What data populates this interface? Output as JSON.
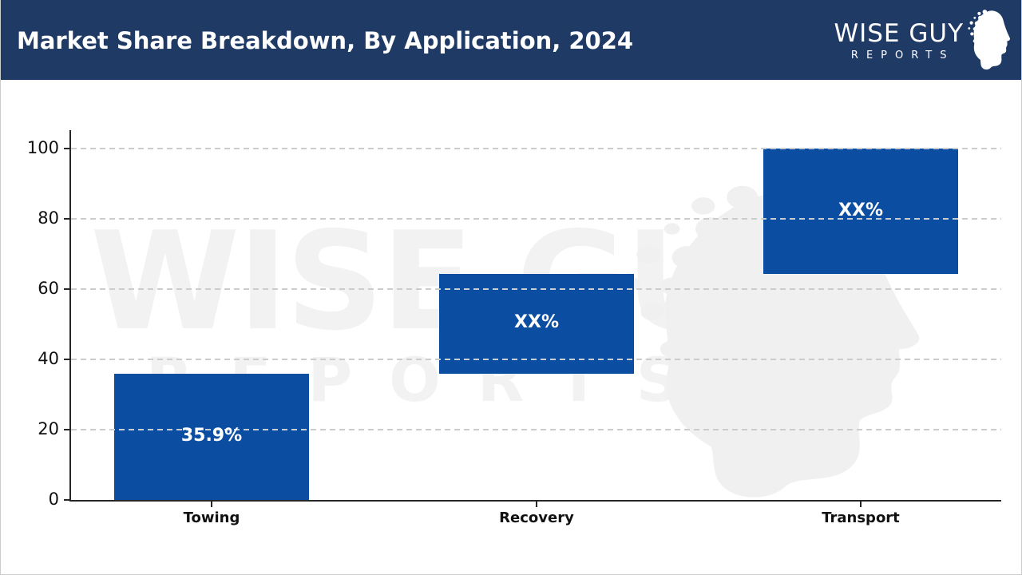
{
  "header": {
    "title": "Market Share Breakdown, By Application, 2024"
  },
  "logo": {
    "line1": "WISE GUY",
    "line2": "REPORTS",
    "head_icon": "dotted-head-profile-icon"
  },
  "watermark": {
    "line1": "WISE GUY",
    "line2": "REPORTS",
    "head_icon": "dotted-head-profile-icon"
  },
  "colors": {
    "header_bg": "#203a66",
    "header_text": "#ffffff",
    "bar_fill": "#0b4da1",
    "bar_label_text": "#ffffff",
    "gridline": "#cccccc",
    "axis_spine": "#262626",
    "tick_text": "#111111",
    "watermark": "#f2f2f2",
    "page_border": "#cccccc"
  },
  "chart_data": {
    "type": "bar",
    "subtype": "waterfall",
    "title": "Market Share Breakdown, By Application, 2024",
    "xlabel": "",
    "ylabel": "",
    "categories": [
      "Towing",
      "Recovery",
      "Transport"
    ],
    "segments": [
      {
        "category": "Towing",
        "start": 0,
        "end": 35.9,
        "label": "35.9%"
      },
      {
        "category": "Recovery",
        "start": 35.9,
        "end": 64.4,
        "label": "XX%"
      },
      {
        "category": "Transport",
        "start": 64.4,
        "end": 100,
        "label": "XX%"
      }
    ],
    "yticks": [
      0,
      20,
      40,
      60,
      80,
      100
    ],
    "ylim": [
      0,
      105
    ],
    "grid": "dashed-horizontal-over-bars",
    "legend": "none"
  }
}
